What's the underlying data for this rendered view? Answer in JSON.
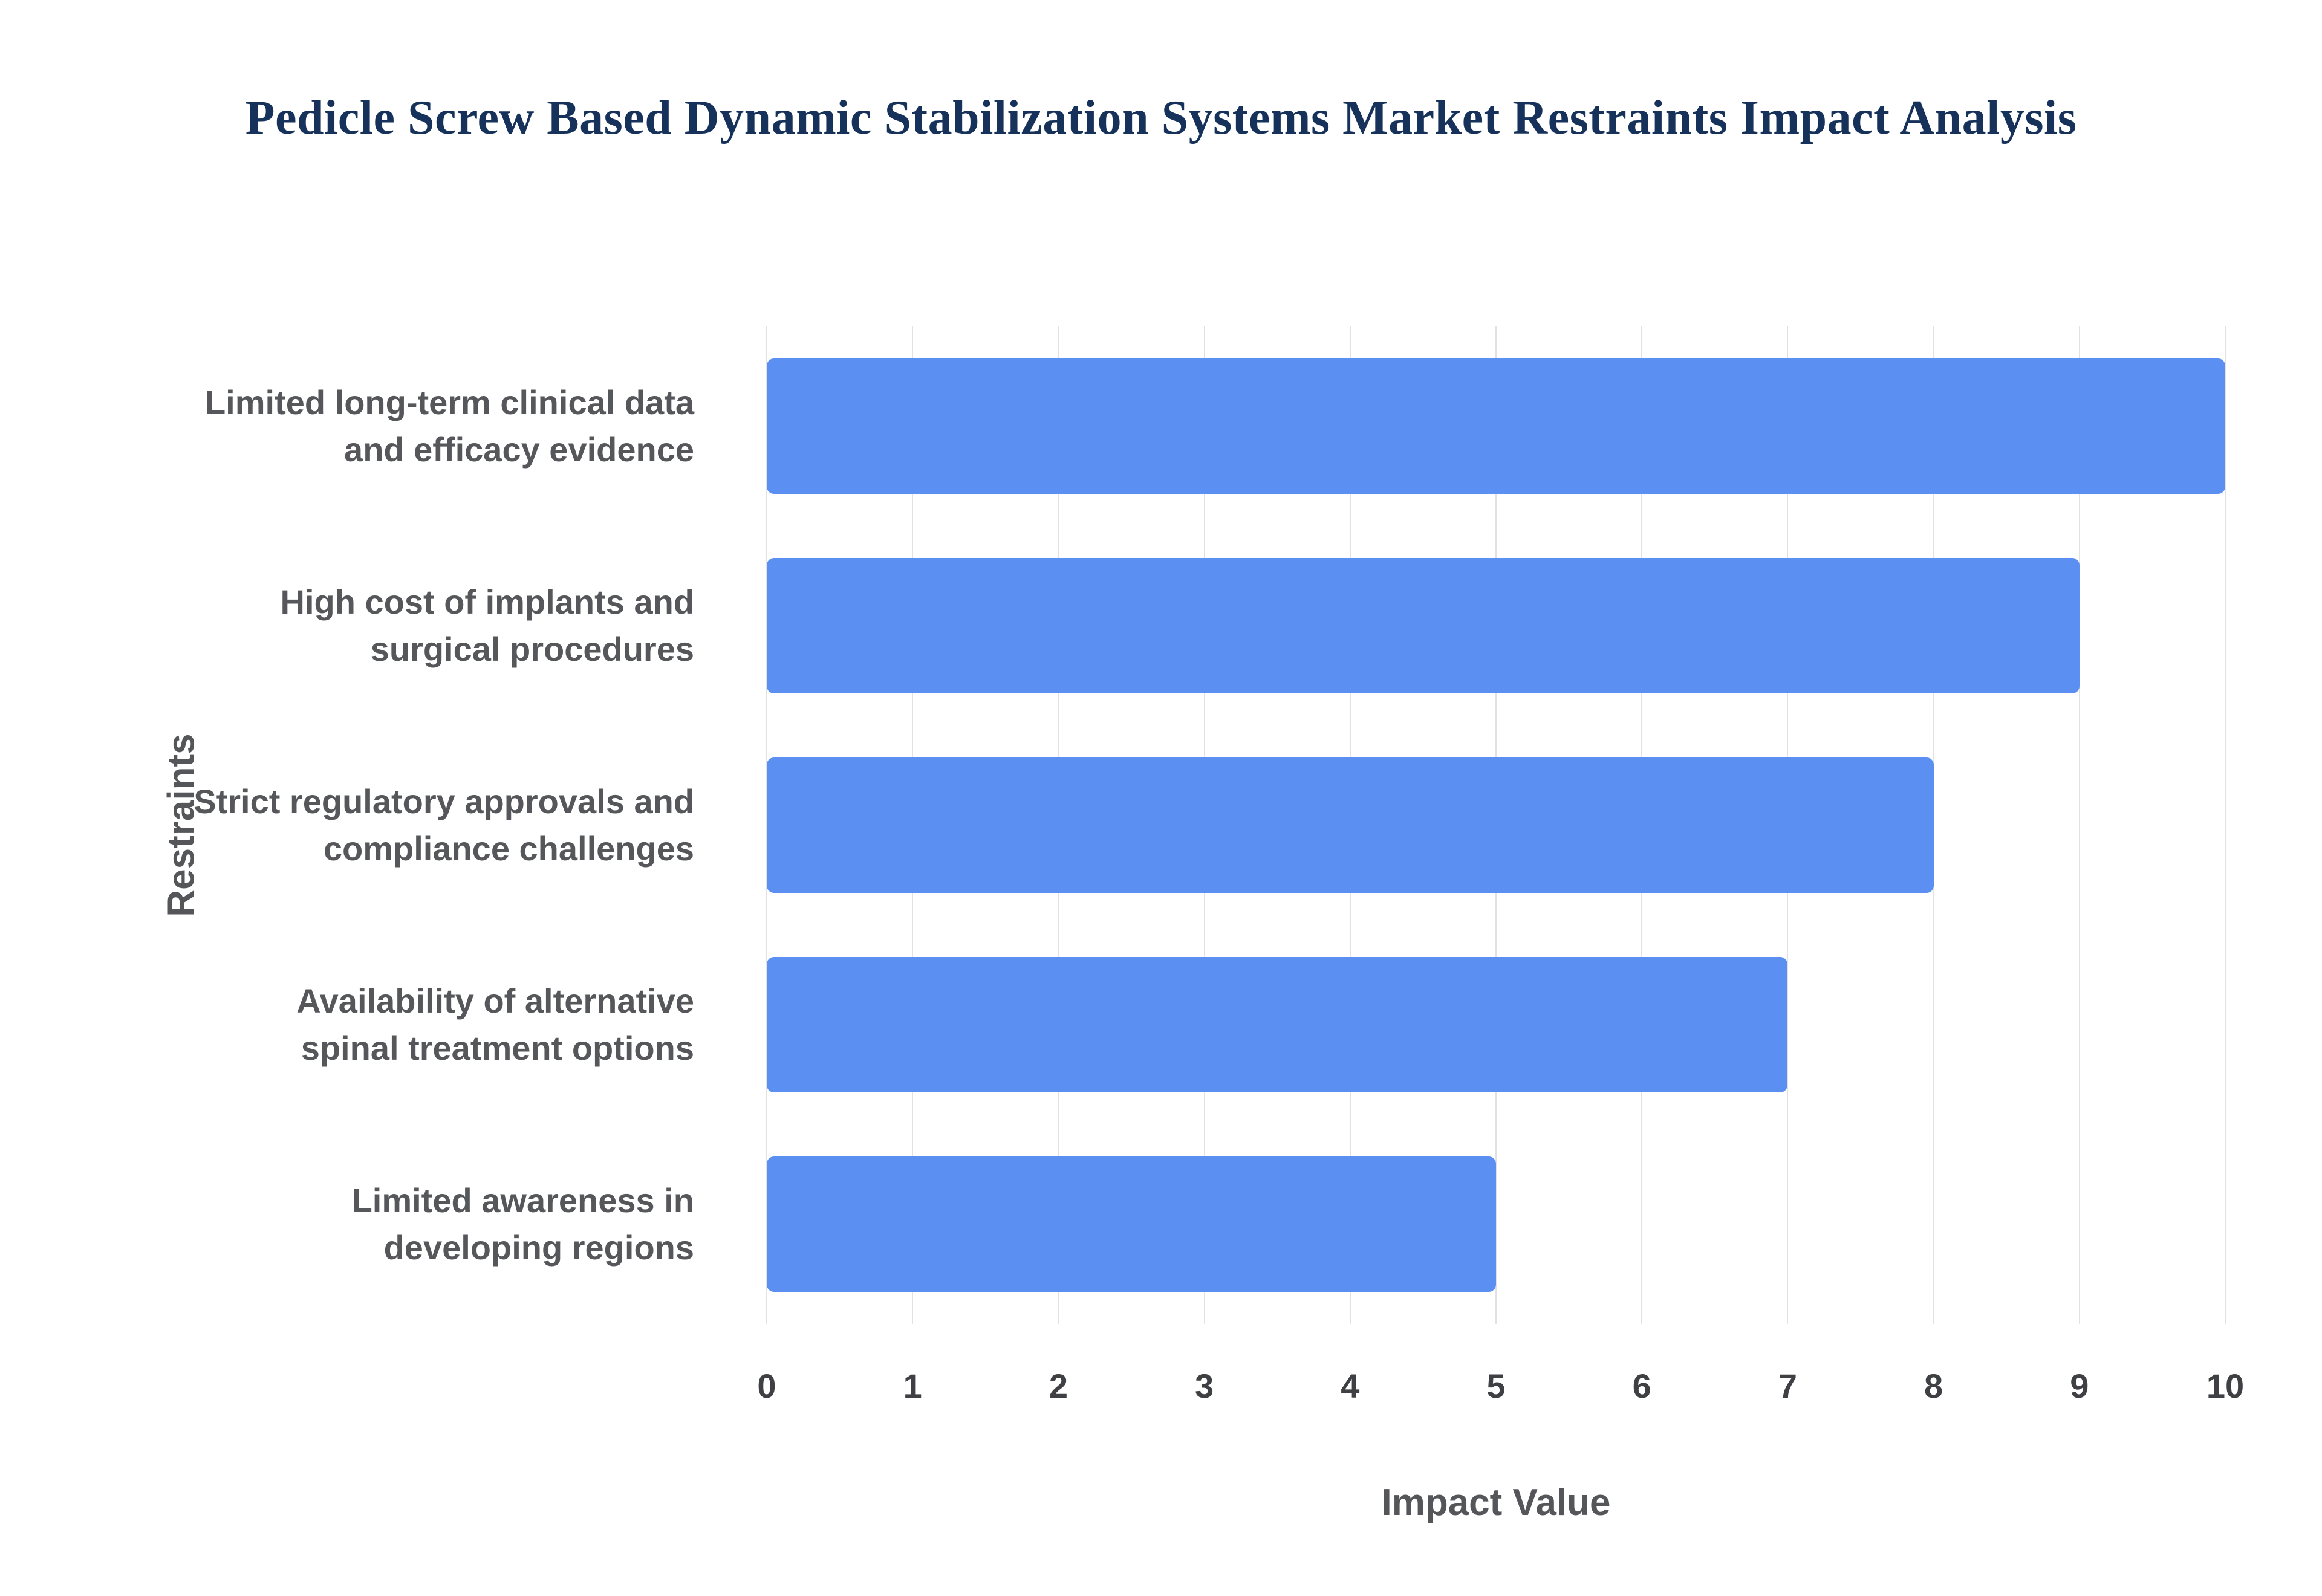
{
  "chart_data": {
    "type": "bar",
    "orientation": "horizontal",
    "title": "Pedicle Screw Based Dynamic Stabilization Systems Market Restraints Impact Analysis",
    "categories": [
      "Limited long-term clinical data and efficacy evidence",
      "High cost of implants and surgical procedures",
      "Strict regulatory approvals and compliance challenges",
      "Availability of alternative spinal treatment options",
      "Limited awareness in developing regions"
    ],
    "values": [
      10,
      9,
      8,
      7,
      5
    ],
    "xlabel": "Impact Value",
    "ylabel": "Restraints",
    "xlim": [
      0,
      10
    ],
    "xticks": [
      0,
      1,
      2,
      3,
      4,
      5,
      6,
      7,
      8,
      9,
      10
    ],
    "grid": true,
    "legend": "none",
    "colors": {
      "bar": "#5b8ff2",
      "title": "#16325a",
      "axis_label": "#55565a",
      "tick_label": "#3f4043",
      "gridline": "#e2e2e2"
    }
  }
}
